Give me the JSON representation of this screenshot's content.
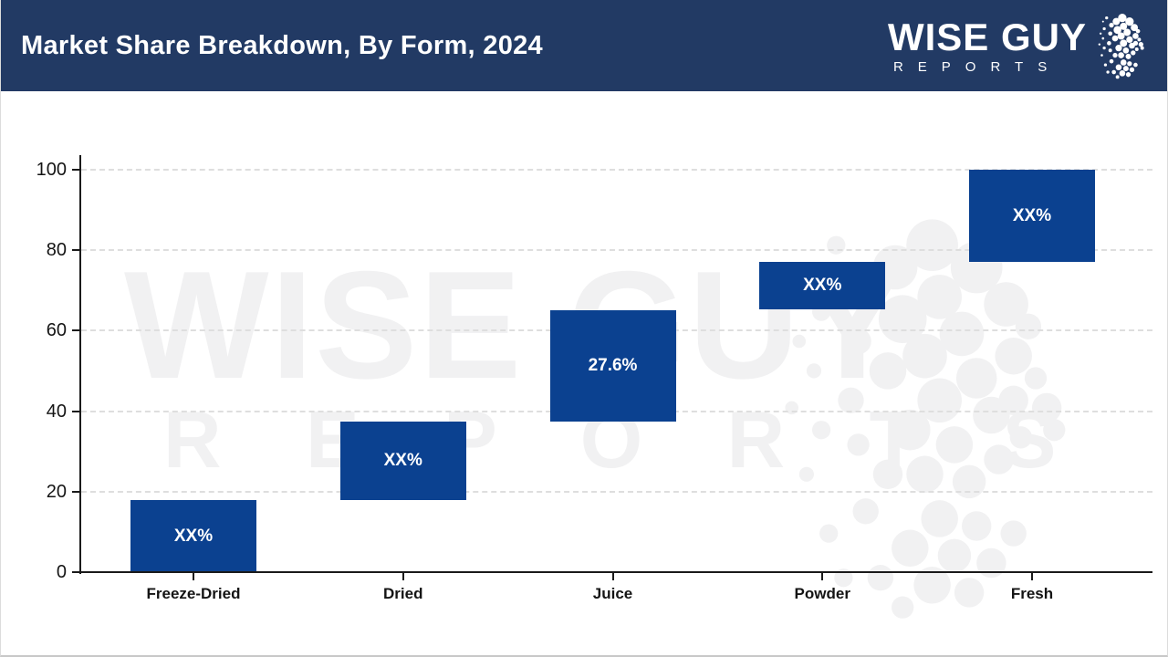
{
  "header": {
    "title": "Market Share Breakdown, By Form, 2024",
    "logo": {
      "line1": "WISE GUY",
      "line2": "REPORTS"
    }
  },
  "watermark": {
    "line1": "WISE GUY",
    "line2": "R E P O R T S"
  },
  "colors": {
    "header_bg": "#223A64",
    "bar": "#0B4190",
    "bar_label": "#FFFFFF",
    "axis": "#1A1A1A",
    "grid": "#DEDEDE",
    "watermark": "#F1F1F2",
    "logo_white": "#FFFFFF"
  },
  "chart_data": {
    "type": "bar",
    "subtype": "floating-waterfall",
    "title": "Market Share Breakdown, By Form, 2024",
    "categories": [
      "Freeze-Dried",
      "Dried",
      "Juice",
      "Powder",
      "Fresh"
    ],
    "series": [
      {
        "name": "Market Share (%)",
        "segments": [
          {
            "category": "Freeze-Dried",
            "start": 0,
            "end": 17.9,
            "label": "XX%"
          },
          {
            "category": "Dried",
            "start": 17.9,
            "end": 37.5,
            "label": "XX%"
          },
          {
            "category": "Juice",
            "start": 37.5,
            "end": 65.1,
            "label": "27.6%"
          },
          {
            "category": "Powder",
            "start": 65.2,
            "end": 77.0,
            "label": "XX%"
          },
          {
            "category": "Fresh",
            "start": 77.0,
            "end": 100.0,
            "label": "XX%"
          }
        ]
      }
    ],
    "xlabel": "",
    "ylabel": "",
    "ylim": [
      0,
      100
    ],
    "yticks": [
      0,
      20,
      40,
      60,
      80,
      100
    ],
    "grid": "horizontal-dashed",
    "legend": "none"
  }
}
